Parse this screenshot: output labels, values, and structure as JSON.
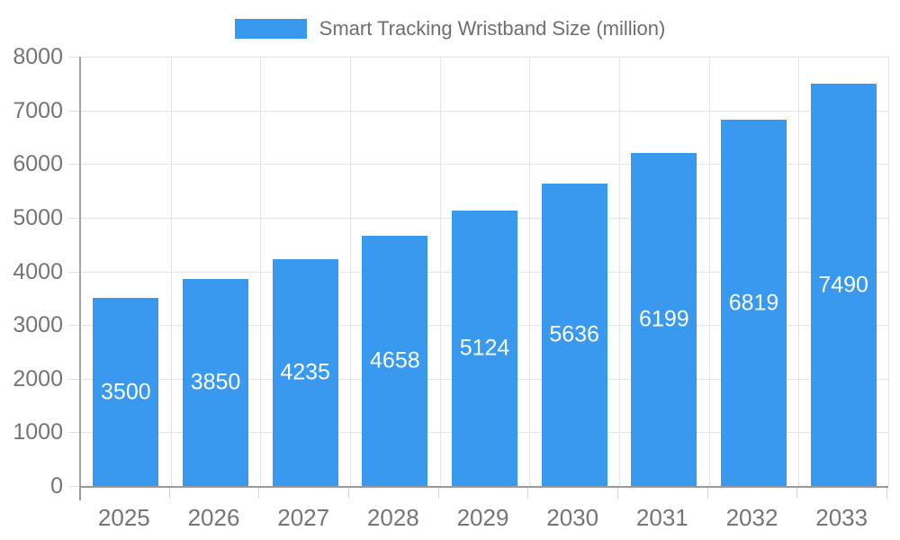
{
  "legend": {
    "label": "Smart Tracking Wristband Size (million)"
  },
  "chart_data": {
    "type": "bar",
    "title": "Smart Tracking Wristband Size (million)",
    "categories": [
      "2025",
      "2026",
      "2027",
      "2028",
      "2029",
      "2030",
      "2031",
      "2032",
      "2033"
    ],
    "values": [
      3500,
      3850,
      4235,
      4658,
      5124,
      5636,
      6199,
      6819,
      7490
    ],
    "xlabel": "",
    "ylabel": "",
    "ylim": [
      0,
      8000
    ],
    "yticks": [
      0,
      1000,
      2000,
      3000,
      4000,
      5000,
      6000,
      7000,
      8000
    ],
    "grid": true,
    "legend_position": "top",
    "value_labels": "inside-center",
    "colors": {
      "bar": "#3999ee",
      "grid": "#e5e5e5",
      "axis": "#9a9a9a",
      "tick_text": "#757575",
      "legend_text": "#6e6e6e",
      "value_label_text": "#ffffff",
      "background": "#ffffff"
    }
  }
}
